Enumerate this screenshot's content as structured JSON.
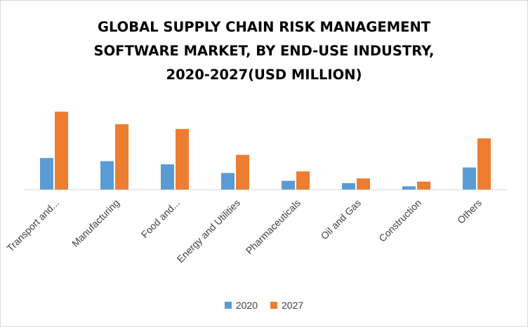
{
  "title_lines": [
    "GLOBAL SUPPLY CHAIN RISK MANAGEMENT",
    "SOFTWARE MARKET, BY END-USE INDUSTRY,",
    "2020-2027(USD MILLION)"
  ],
  "colors": {
    "2020": "#5b9bd5",
    "2027": "#ed7d31",
    "axis": "#d9d9d9",
    "text": "#404040"
  },
  "chart_data": {
    "type": "bar",
    "title": "GLOBAL SUPPLY CHAIN RISK MANAGEMENT SOFTWARE MARKET, BY END-USE INDUSTRY, 2020-2027(USD MILLION)",
    "categories": [
      "Transport and...",
      "Manufacturing",
      "Food and...",
      "Energy and Utilities",
      "Pharmaceuticals",
      "Oil and Gas",
      "Construction",
      "Others"
    ],
    "series": [
      {
        "name": "2020",
        "values": [
          40,
          36,
          32,
          21,
          11,
          8,
          4,
          28
        ]
      },
      {
        "name": "2027",
        "values": [
          99,
          83,
          77,
          44,
          23,
          14,
          10,
          65
        ]
      }
    ],
    "ylim": [
      0,
      100
    ],
    "xlabel": "",
    "ylabel": "",
    "grid": false,
    "legend_position": "bottom"
  }
}
